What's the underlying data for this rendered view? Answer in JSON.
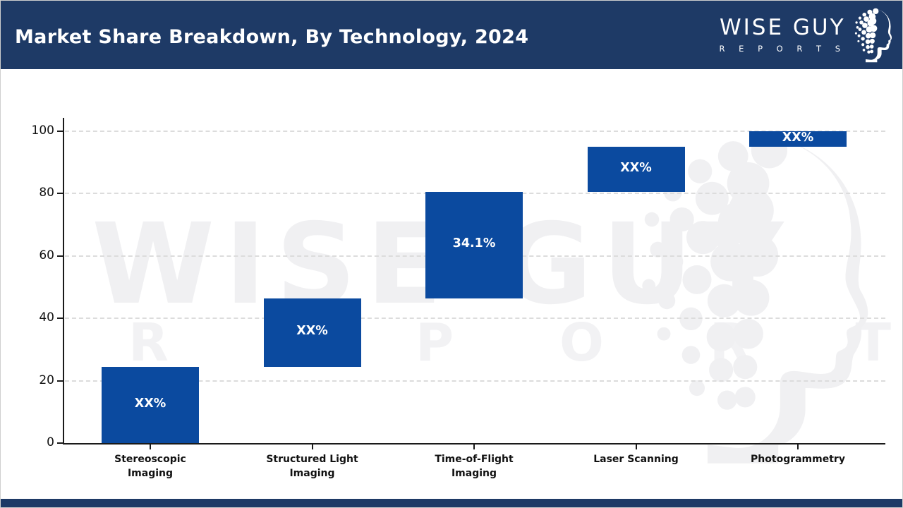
{
  "header": {
    "title": "Market Share Breakdown, By Technology, 2024"
  },
  "logo": {
    "name_line": "WISE GUY",
    "sub_line": "R E P O R T S"
  },
  "watermark": {
    "name_line": "WISE GUY",
    "sub_line": "R E P O R T S"
  },
  "colors": {
    "header_bg": "#1e3a66",
    "footer_bg": "#1e3a66",
    "bar_fill": "#0b4a9f",
    "bar_label_text": "#ffffff",
    "grid_line": "#dcdcdc",
    "axis_line": "#1a1a1a",
    "tick_label_text": "#111111",
    "category_label_text": "#111111",
    "watermark_text": "#f0f0f2",
    "logo_text": "#ffffff"
  },
  "chart_data": {
    "type": "waterfall",
    "title": "Market Share Breakdown, By Technology, 2024",
    "categories": [
      "Stereoscopic\nImaging",
      "Structured Light\nImaging",
      "Time-of-Flight\nImaging",
      "Laser Scanning",
      "Photogrammetry"
    ],
    "segments": [
      {
        "category": "Stereoscopic Imaging",
        "start": 0,
        "end": 24.5,
        "value": 24.5,
        "label": "XX%"
      },
      {
        "category": "Structured Light Imaging",
        "start": 24.5,
        "end": 46.4,
        "value": 21.9,
        "label": "XX%"
      },
      {
        "category": "Time-of-Flight Imaging",
        "start": 46.4,
        "end": 80.5,
        "value": 34.1,
        "label": "34.1%"
      },
      {
        "category": "Laser Scanning",
        "start": 80.5,
        "end": 94.9,
        "value": 14.4,
        "label": "XX%"
      },
      {
        "category": "Photogrammetry",
        "start": 94.9,
        "end": 100,
        "value": 5.1,
        "label": "XX%"
      }
    ],
    "yticks": [
      0,
      20,
      40,
      60,
      80,
      100
    ],
    "ylim": [
      0,
      104.5
    ],
    "xlabel": "",
    "ylabel": "",
    "grid": "horizontal-dashed",
    "legend": "none"
  }
}
